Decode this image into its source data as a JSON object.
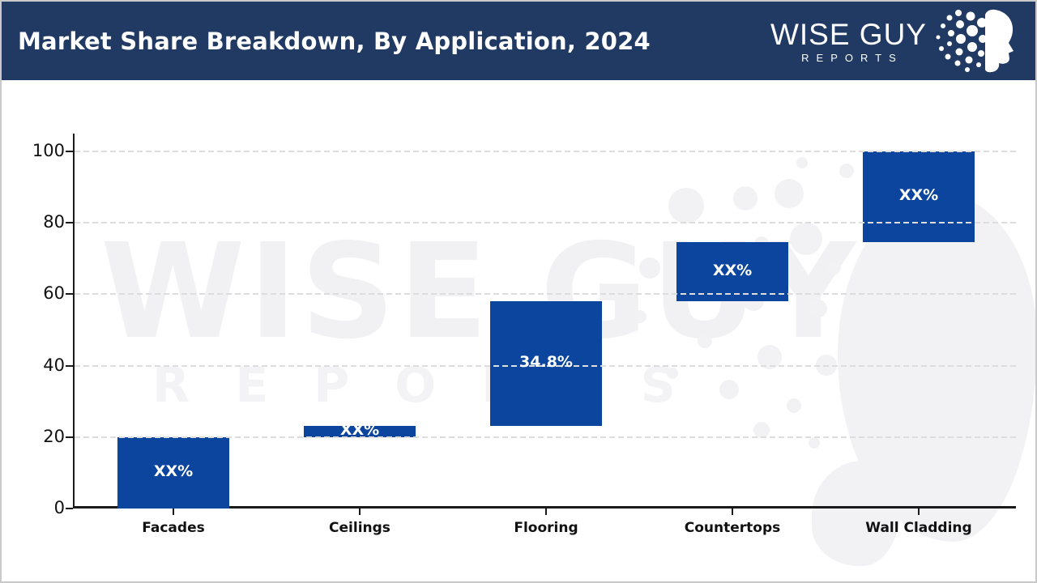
{
  "header": {
    "title": "Market Share Breakdown, By Application, 2024",
    "logo_line1": "WISE GUY",
    "logo_line2": "REPORTS"
  },
  "watermark": {
    "line1": "WISE GUY",
    "line2": "REPORTS"
  },
  "colors": {
    "header_bg": "#203a64",
    "bar": "#0b459e",
    "bar_label": "#ffffff",
    "grid": "#dddddd",
    "axis": "#1a1a1a",
    "watermark": "#f2f2f4"
  },
  "chart_data": {
    "type": "bar",
    "subtype": "waterfall",
    "title": "Market Share Breakdown, By Application, 2024",
    "xlabel": "",
    "ylabel": "",
    "categories": [
      "Facades",
      "Ceilings",
      "Flooring",
      "Countertops",
      "Wall Cladding"
    ],
    "segments": [
      {
        "category": "Facades",
        "start": 0,
        "end": 20,
        "value_label": "XX%"
      },
      {
        "category": "Ceilings",
        "start": 20,
        "end": 23.2,
        "value_label": "XX%"
      },
      {
        "category": "Flooring",
        "start": 23.2,
        "end": 58,
        "value_label": "34.8%"
      },
      {
        "category": "Countertops",
        "start": 58,
        "end": 74.5,
        "value_label": "XX%"
      },
      {
        "category": "Wall Cladding",
        "start": 74.5,
        "end": 100,
        "value_label": "XX%"
      }
    ],
    "yticks": [
      0,
      20,
      40,
      60,
      80,
      100
    ],
    "ylim": [
      0,
      105
    ],
    "grid": "horizontal-dashed",
    "legend": "none"
  }
}
